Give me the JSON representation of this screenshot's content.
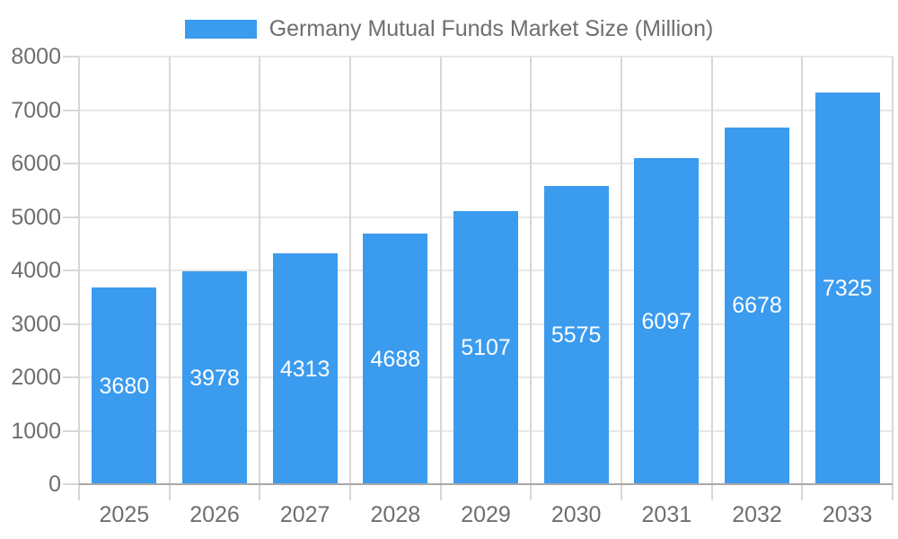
{
  "legend": {
    "label": "Germany Mutual Funds Market Size (Million)"
  },
  "colors": {
    "bar": "#3B9BEF",
    "grid": "#e7e7e7",
    "boundary_line": "#d7d7d7",
    "axis_line": "#a8a8a8",
    "text": "#6e6e6e",
    "bar_label": "#ffffff",
    "background": "#ffffff"
  },
  "chart_data": {
    "type": "bar",
    "title": "Germany Mutual Funds Market Size (Million)",
    "categories": [
      "2025",
      "2026",
      "2027",
      "2028",
      "2029",
      "2030",
      "2031",
      "2032",
      "2033"
    ],
    "values": [
      3680,
      3978,
      4313,
      4688,
      5107,
      5575,
      6097,
      6678,
      7325
    ],
    "series_name": "Germany Mutual Funds Market Size (Million)",
    "xlabel": "",
    "ylabel": "",
    "ylim": [
      0,
      8000
    ],
    "ytick_labels": [
      "0",
      "1000",
      "2000",
      "3000",
      "4000",
      "5000",
      "6000",
      "7000",
      "8000"
    ],
    "ytick_interval": 1000,
    "grid": true,
    "legend_position": "top",
    "bar_labels": "inside-centered"
  }
}
